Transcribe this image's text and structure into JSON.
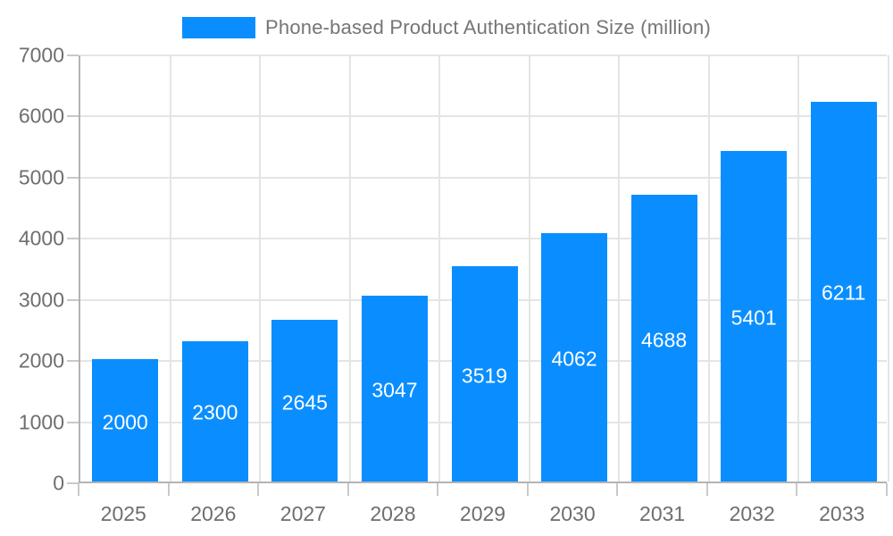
{
  "legend": {
    "label": "Phone-based Product Authentication Size (million)",
    "swatch_color": "#0a8eff"
  },
  "chart_data": {
    "type": "bar",
    "title": "Phone-based Product Authentication Size (million)",
    "categories": [
      "2025",
      "2026",
      "2027",
      "2028",
      "2029",
      "2030",
      "2031",
      "2032",
      "2033"
    ],
    "series": [
      {
        "name": "Phone-based Product Authentication Size (million)",
        "values": [
          2000,
          2300,
          2645,
          3047,
          3519,
          4062,
          4688,
          5401,
          6211
        ]
      }
    ],
    "xlabel": "",
    "ylabel": "",
    "ylim": [
      0,
      7000
    ],
    "ytick_interval": 1000,
    "yticks": [
      0,
      1000,
      2000,
      3000,
      4000,
      5000,
      6000,
      7000
    ],
    "grid": true,
    "legend_position": "top",
    "bar_color": "#0a8eff",
    "value_label_color": "#ffffff",
    "value_label_position": "inside-center"
  },
  "colors": {
    "bar": "#0a8eff",
    "gridline": "#e5e5e5",
    "axis_line": "#b3b3b3",
    "tick_mark": "#c9c9c9",
    "tick_label": "#6e6e6e",
    "legend_text": "#757575",
    "background": "#ffffff"
  }
}
